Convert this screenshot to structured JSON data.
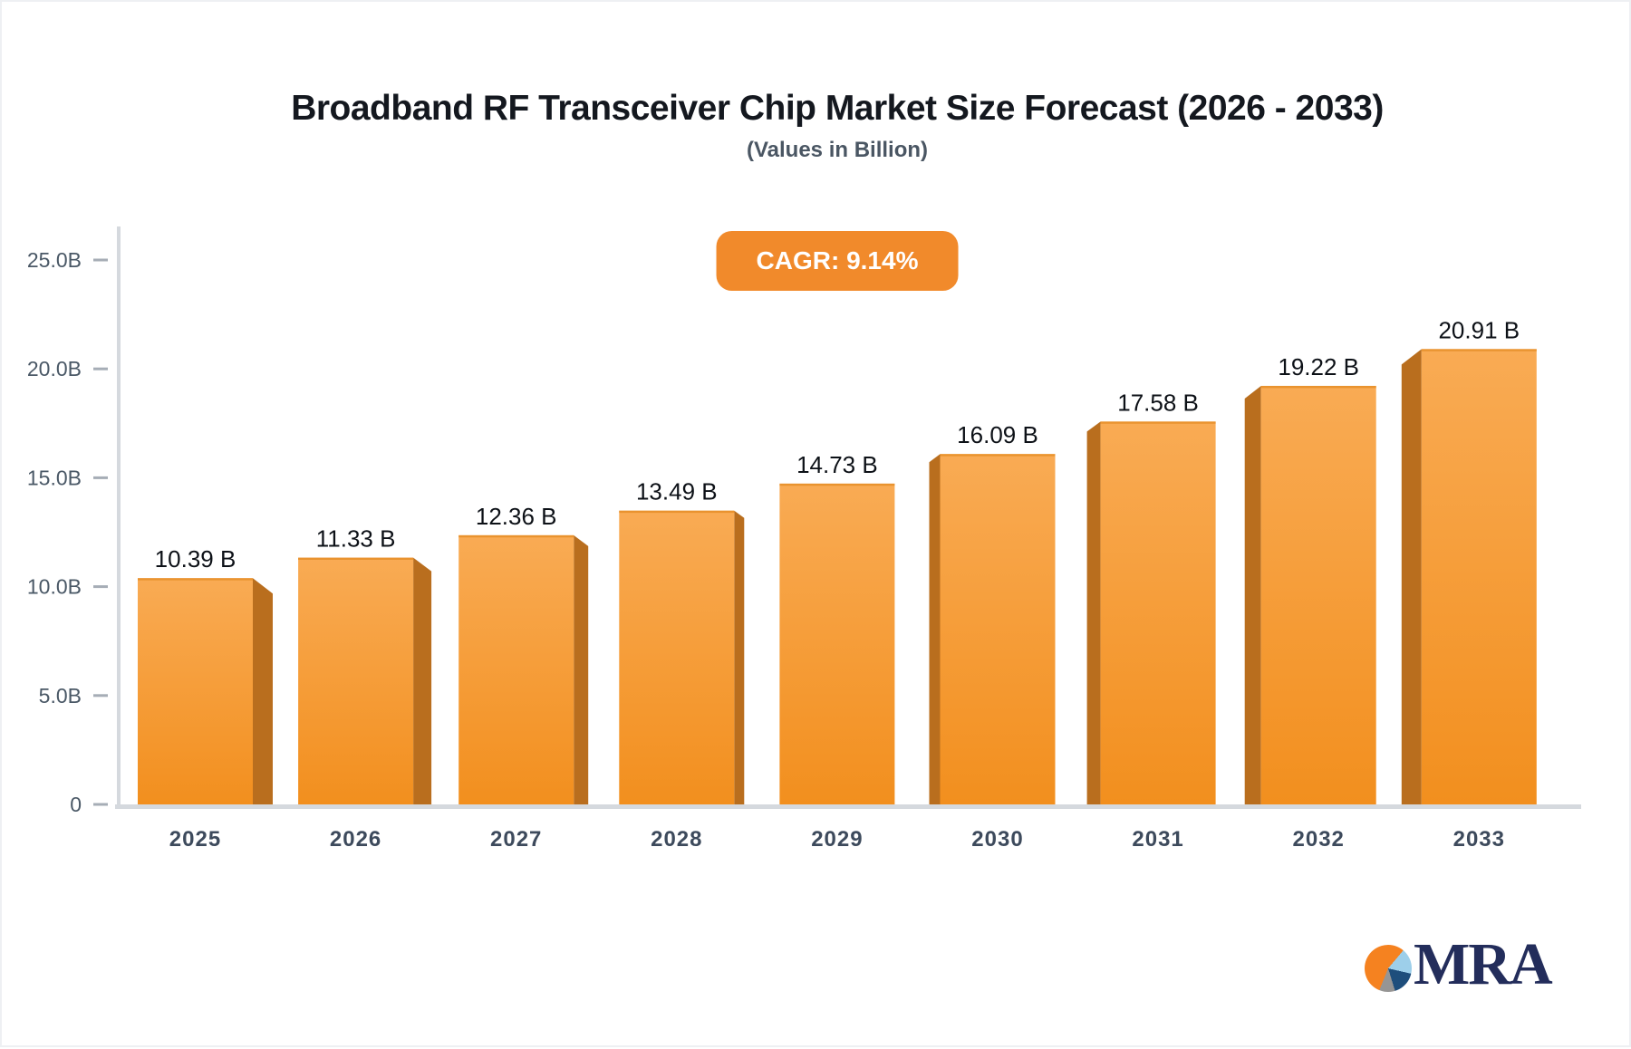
{
  "chart_data": {
    "type": "bar",
    "title": "Broadband RF Transceiver Chip Market Size Forecast (2026 - 2033)",
    "subtitle": "(Values in Billion)",
    "annotation": "CAGR: 9.14%",
    "categories": [
      "2025",
      "2026",
      "2027",
      "2028",
      "2029",
      "2030",
      "2031",
      "2032",
      "2033"
    ],
    "values": [
      10.39,
      11.33,
      12.36,
      13.49,
      14.73,
      16.09,
      17.58,
      19.22,
      20.91
    ],
    "value_labels": [
      "10.39 B",
      "11.33 B",
      "12.36 B",
      "13.49 B",
      "14.73 B",
      "16.09 B",
      "17.58 B",
      "19.22 B",
      "20.91 B"
    ],
    "xlabel": "",
    "ylabel": "",
    "ylim": [
      0,
      25
    ],
    "yticks": [
      0,
      5,
      10,
      15,
      20,
      25
    ],
    "ytick_labels": [
      "0",
      "5.0B",
      "10.0B",
      "15.0B",
      "20.0B",
      "25.0B"
    ],
    "grid": "off",
    "legend": "none",
    "bar_style": "3d-perspective-extruded"
  },
  "colors": {
    "bar_top": "#F9AB54",
    "bar_bottom": "#F28F1E",
    "bar_side": "#B96E1E",
    "bar_top_edge": "#E9932F",
    "badge_bg": "#F18A2B",
    "badge_text": "#FFFFFF",
    "axis_line": "#D5D9DE",
    "tick": "#A6ADB6",
    "ytick_text": "#4A5866",
    "xtick_text": "#3D4A5C",
    "value_text": "#0D1117",
    "title_text": "#14181F",
    "subtitle_text": "#4A5663",
    "logo_navy": "#232D5B"
  },
  "logo": {
    "text": "MRA",
    "icon": "pie-chart-icon",
    "pie_colors": [
      "#F58220",
      "#9DCFEA",
      "#1E4E7C",
      "#969594"
    ]
  }
}
